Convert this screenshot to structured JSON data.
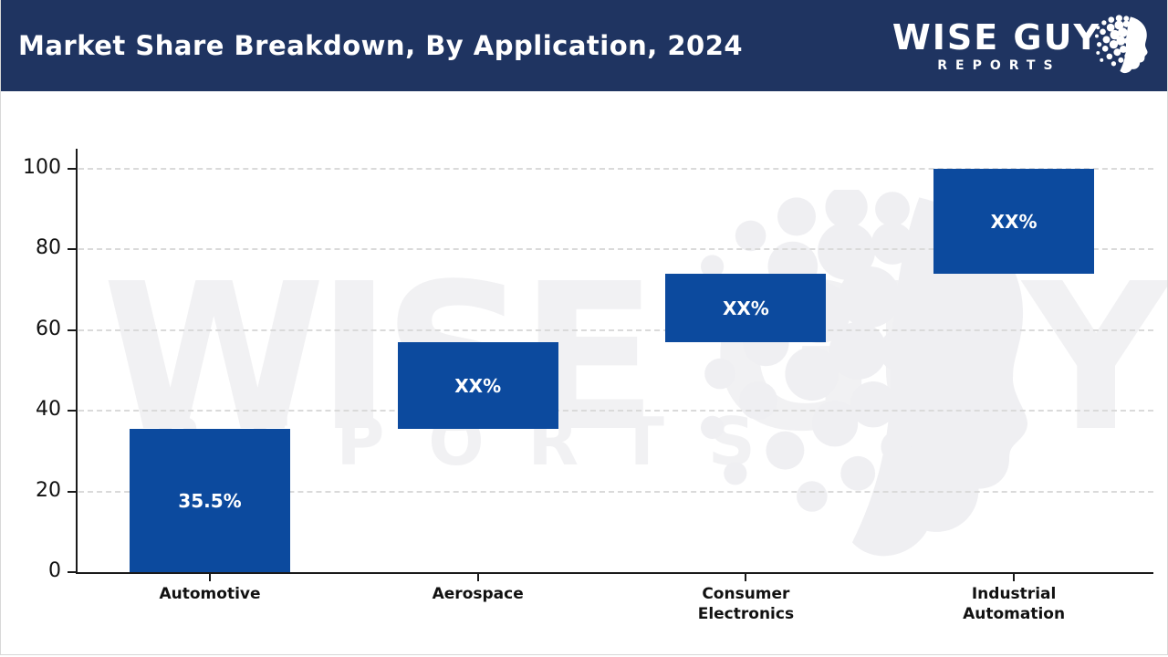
{
  "header": {
    "logo": {
      "line1": "WISE GUY",
      "line2": "REPORTS"
    }
  },
  "watermark": {
    "line1": "WISE GUY",
    "line2": "REPORTS"
  },
  "colors": {
    "header_bg": "#1f3461",
    "bar_blue": "#0c4a9e",
    "bar_label": "#ffffff",
    "grid": "#dadada",
    "axis": "#1a1a1a",
    "tick_text": "#111111"
  },
  "chart_data": {
    "type": "bar",
    "subtype": "floating-waterfall",
    "title": "Market Share Breakdown, By Application, 2024",
    "categories": [
      "Automotive",
      "Aerospace",
      "Consumer\nElectronics",
      "Industrial\nAutomation"
    ],
    "segments": [
      {
        "category": "Automotive",
        "start": 0,
        "end": 35.5,
        "label": "35.5%"
      },
      {
        "category": "Aerospace",
        "start": 35.5,
        "end": 57,
        "label": "XX%"
      },
      {
        "category": "Consumer Electronics",
        "start": 57,
        "end": 74,
        "label": "XX%"
      },
      {
        "category": "Industrial Automation",
        "start": 74,
        "end": 100,
        "label": "XX%"
      }
    ],
    "yticks": [
      0,
      20,
      40,
      60,
      80,
      100
    ],
    "ylim": [
      0,
      105
    ],
    "xlabel": "",
    "ylabel": "",
    "grid": "horizontal-dashed",
    "legend": "none"
  }
}
